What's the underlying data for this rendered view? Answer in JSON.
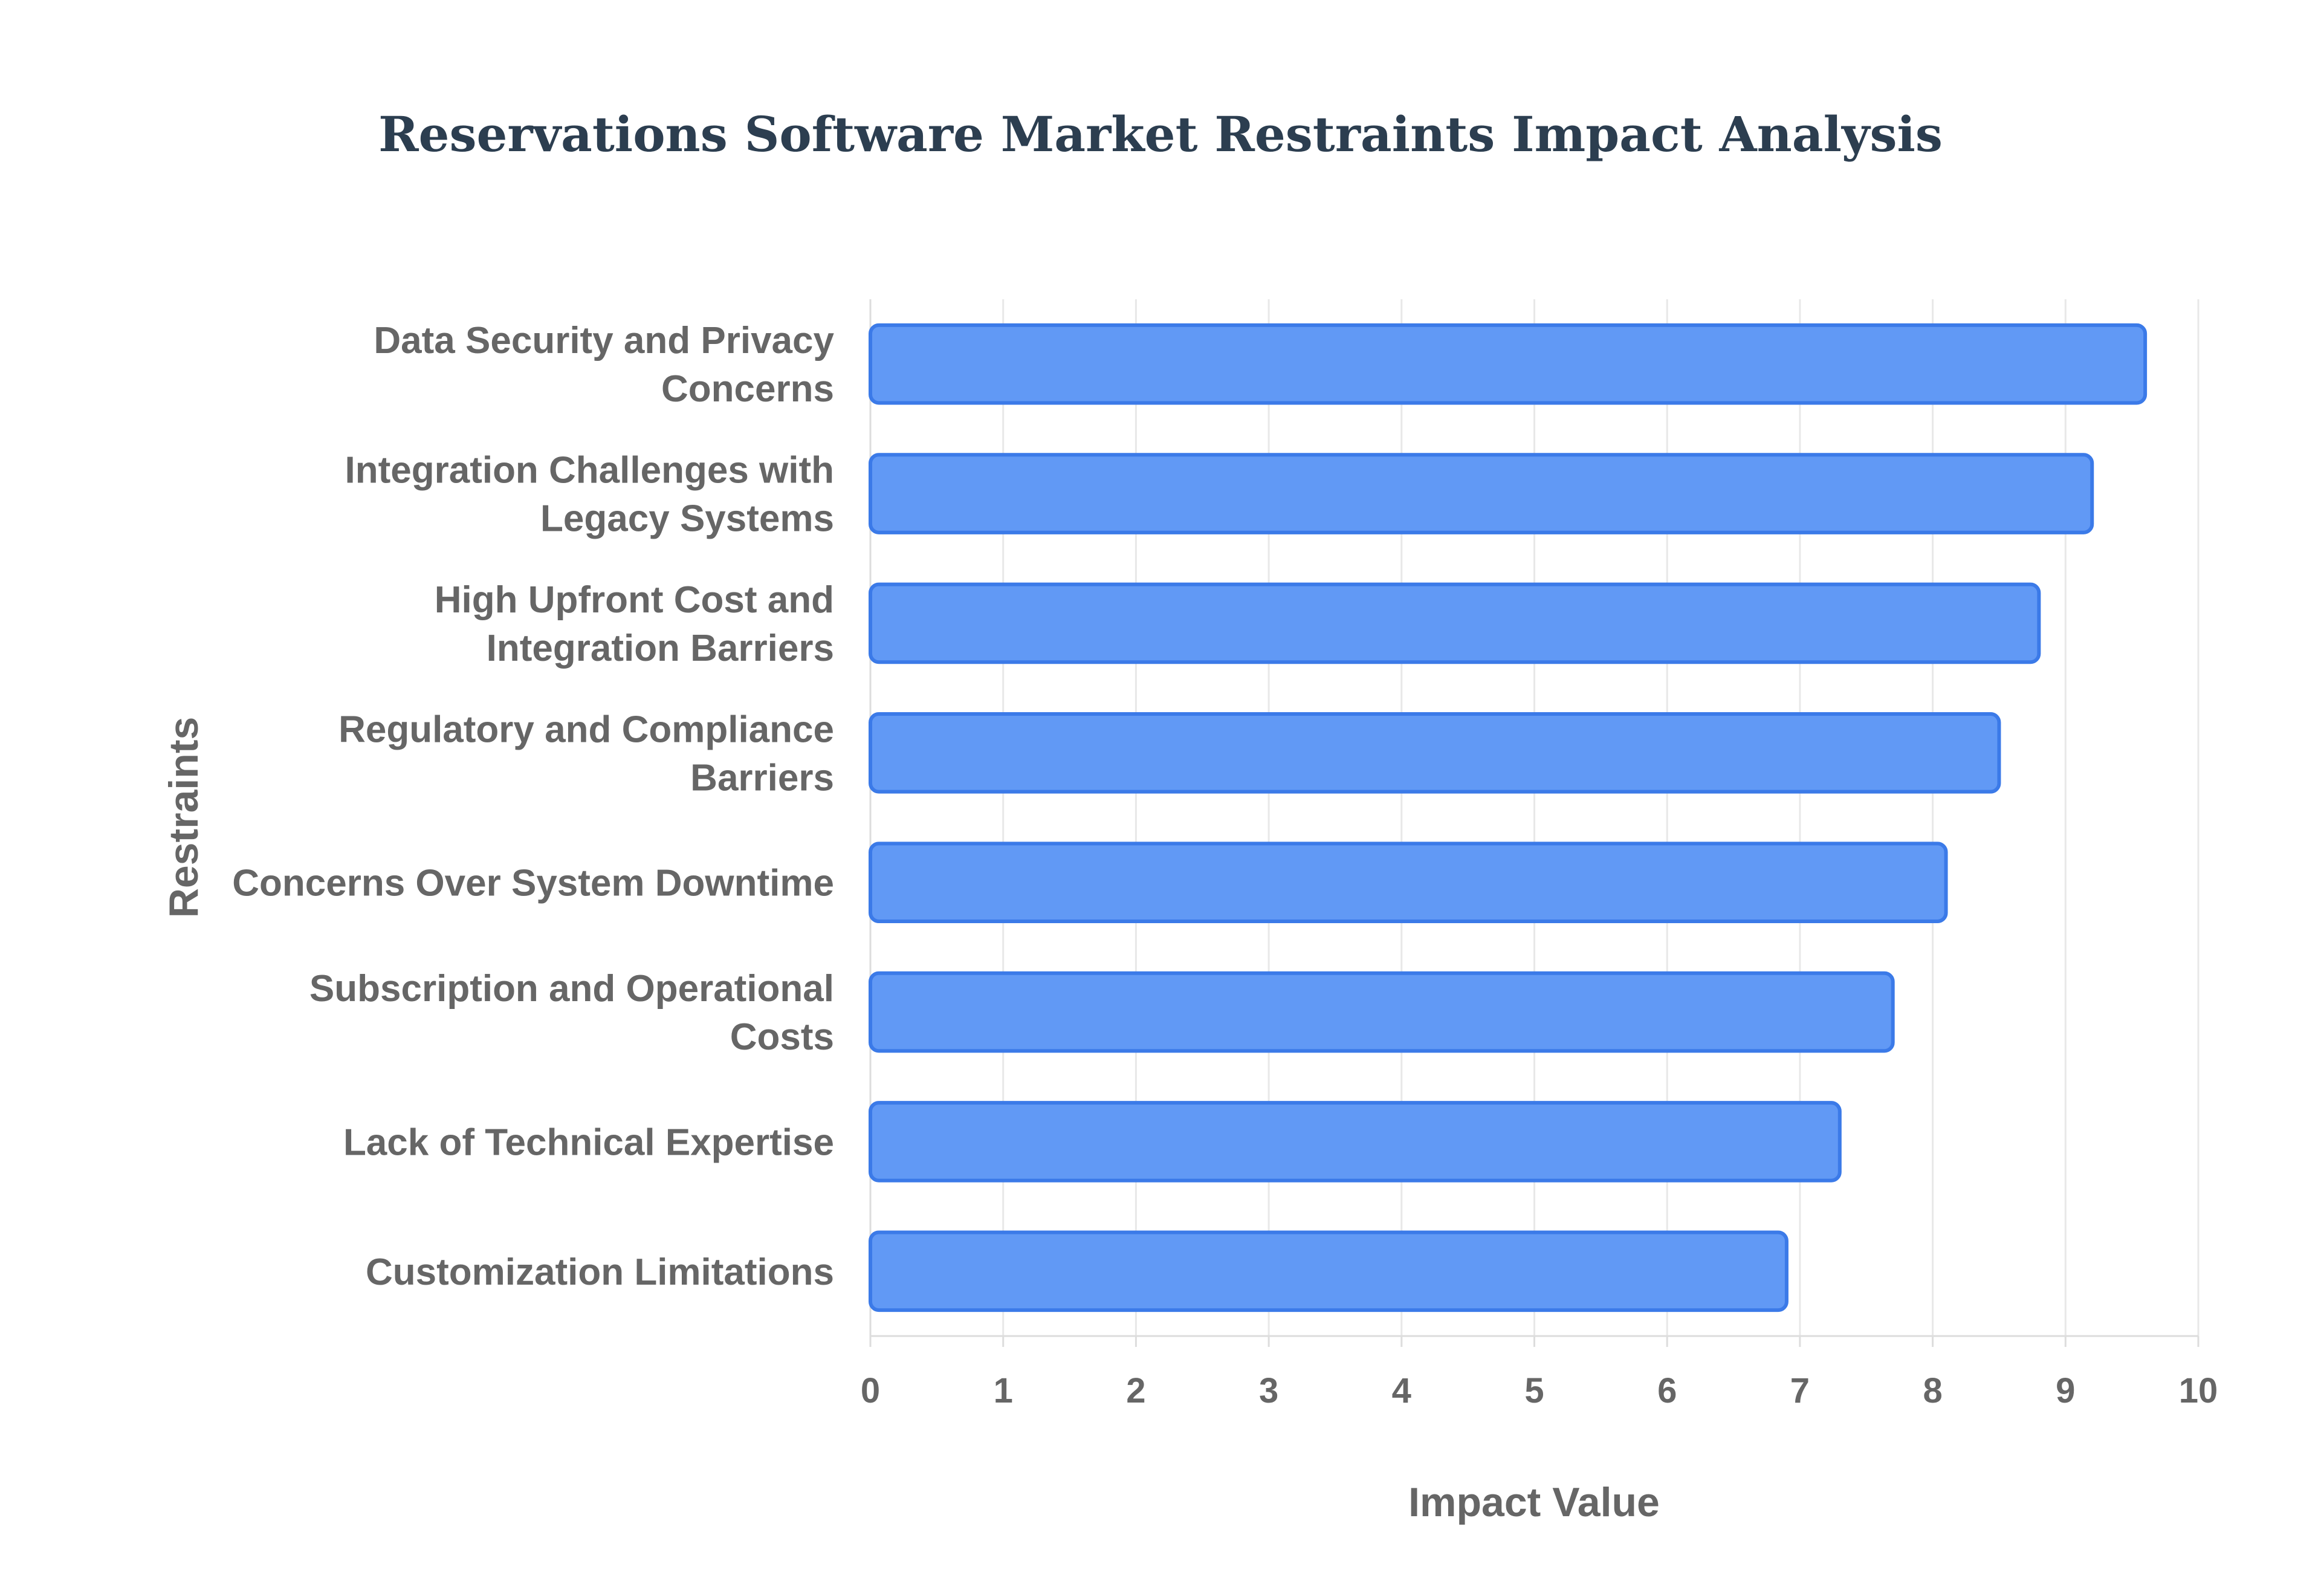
{
  "chart_data": {
    "type": "bar",
    "orientation": "horizontal",
    "title": "Reservations Software Market Restraints Impact Analysis",
    "xlabel": "Impact Value",
    "ylabel": "Restraints",
    "xlim": [
      0,
      10
    ],
    "xticks": [
      0,
      1,
      2,
      3,
      4,
      5,
      6,
      7,
      8,
      9,
      10
    ],
    "grid": true,
    "legend": "none",
    "categories": [
      [
        "Data Security and Privacy",
        "Concerns"
      ],
      [
        "Integration Challenges with",
        "Legacy Systems"
      ],
      [
        "High Upfront Cost and",
        "Integration Barriers"
      ],
      [
        "Regulatory and Compliance",
        "Barriers"
      ],
      [
        "Concerns Over System Downtime"
      ],
      [
        "Subscription and Operational",
        "Costs"
      ],
      [
        "Lack of Technical Expertise"
      ],
      [
        "Customization Limitations"
      ]
    ],
    "values": [
      9.6,
      9.2,
      8.8,
      8.5,
      8.1,
      7.7,
      7.3,
      6.9
    ],
    "colors": {
      "bar_fill": "#6199f5",
      "bar_stroke": "#3b7ae8",
      "title": "#2c3e50",
      "text": "#666666"
    }
  }
}
